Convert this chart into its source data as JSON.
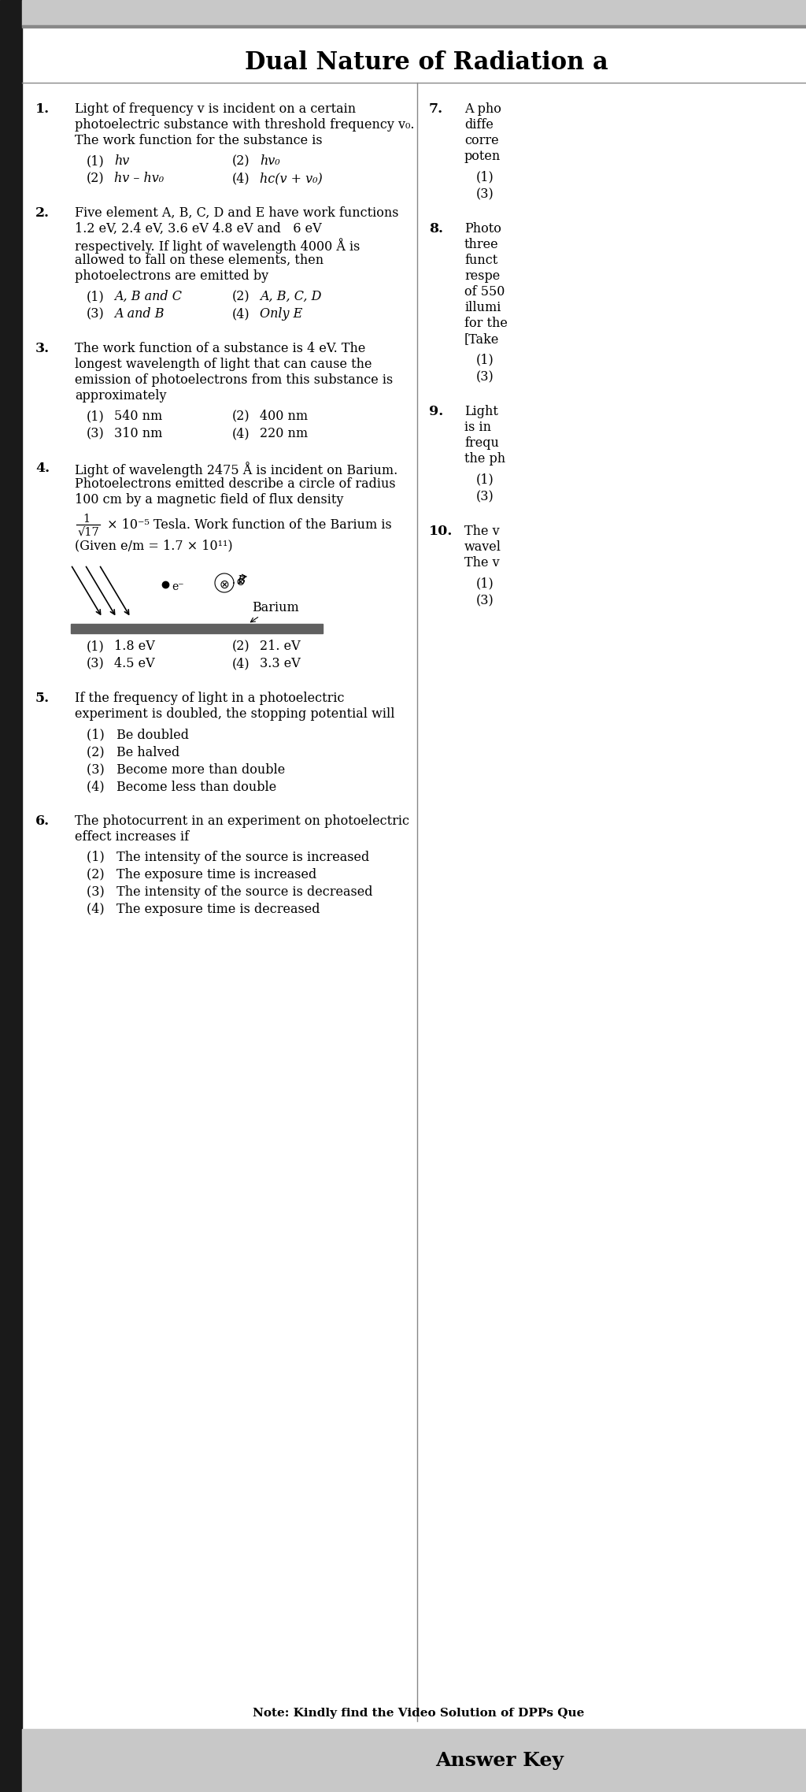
{
  "title": "Dual Nature of Radiation a",
  "page_bg": "#ffffff",
  "note_text": "Note: Kindly find the Video Solution of DPPs Que",
  "answer_key_text": "Answer Key",
  "header_bar_color": "#c8c8c8",
  "divider_color": "#999999",
  "black_bar_color": "#1a1a1a",
  "answer_bar_color": "#c8c8c8",
  "q1_text_line1": "Light of frequency v is incident on a certain",
  "q1_text_line2": "photoelectric substance with threshold frequency v₀.",
  "q1_text_line3": "The work function for the substance is",
  "q1_o1l": "hv",
  "q1_o2r": "hv₀",
  "q1_o3l": "hv – hv₀",
  "q1_o4r": "hc(v + v₀)",
  "q2_text_line1": "Five element A, B, C, D and E have work functions",
  "q2_text_line2": "1.2 eV, 2.4 eV, 3.6 eV 4.8 eV and   6 eV",
  "q2_text_line3": "respectively. If light of wavelength 4000 Å is",
  "q2_text_line4": "allowed to fall on these elements, then",
  "q2_text_line5": "photoelectrons are emitted by",
  "q2_o1l": "A, B and C",
  "q2_o2r": "A, B, C, D",
  "q2_o3l": "A and B",
  "q2_o4r": "Only E",
  "q3_text_line1": "The work function of a substance is 4 eV. The",
  "q3_text_line2": "longest wavelength of light that can cause the",
  "q3_text_line3": "emission of photoelectrons from this substance is",
  "q3_text_line4": "approximately",
  "q3_o1l": "540 nm",
  "q3_o2r": "400 nm",
  "q3_o3l": "310 nm",
  "q3_o4r": "220 nm",
  "q4_text_line1": "Light of wavelength 2475 Å is incident on Barium.",
  "q4_text_line2": "Photoelectrons emitted describe a circle of radius",
  "q4_text_line3": "100 cm by a magnetic field of flux density",
  "q4_frac_num": "1",
  "q4_frac_den": "√17",
  "q4_frac_rest": " × 10⁻⁵ Tesla. Work function of the Barium is",
  "q4_given": "(Given e/m = 1.7 × 10¹¹)",
  "q4_o1l": "1.8 eV",
  "q4_o2r": "21. eV",
  "q4_o3l": "4.5 eV",
  "q4_o4r": "3.3 eV",
  "q5_text_line1": "If the frequency of light in a photoelectric",
  "q5_text_line2": "experiment is doubled, the stopping potential will",
  "q5_opts": [
    "(1)   Be doubled",
    "(2)   Be halved",
    "(3)   Become more than double",
    "(4)   Become less than double"
  ],
  "q6_text_line1": "The photocurrent in an experiment on photoelectric",
  "q6_text_line2": "effect increases if",
  "q6_opts": [
    "(1)   The intensity of the source is increased",
    "(2)   The exposure time is increased",
    "(3)   The intensity of the source is decreased",
    "(4)   The exposure time is decreased"
  ],
  "q7_text": [
    "A pho",
    "diffe",
    "corre",
    "poten"
  ],
  "q8_text": [
    "Photo",
    "three",
    "funct",
    "respe",
    "of 550",
    "illumi",
    "for the",
    "[Take"
  ],
  "q9_text": [
    "Light",
    "is in",
    "frequ",
    "the ph"
  ],
  "q10_text": [
    "The v",
    "wavel",
    "The v"
  ]
}
